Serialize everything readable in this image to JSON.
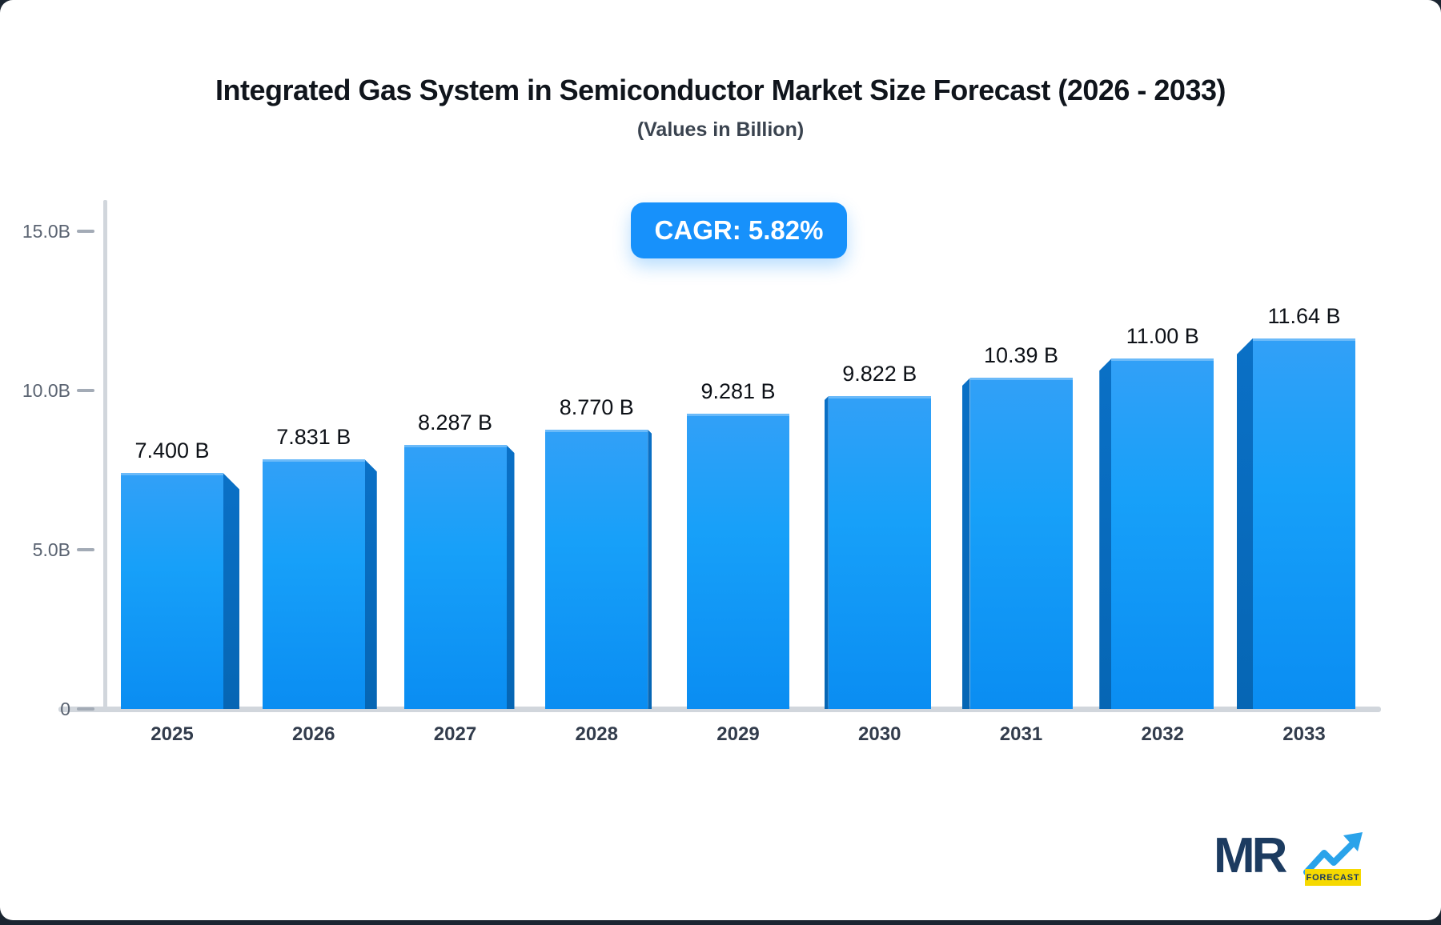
{
  "header": {
    "title": "Integrated Gas System in Semiconductor Market Size Forecast (2026 - 2033)",
    "subtitle": "(Values in Billion)",
    "cagr_label": "CAGR: 5.82%"
  },
  "chart_data": {
    "type": "bar",
    "title": "Integrated Gas System in Semiconductor Market Size Forecast (2026 - 2033)",
    "subtitle": "(Values in Billion)",
    "categories": [
      "2025",
      "2026",
      "2027",
      "2028",
      "2029",
      "2030",
      "2031",
      "2032",
      "2033"
    ],
    "values": [
      7.4,
      7.831,
      8.287,
      8.77,
      9.281,
      9.822,
      10.39,
      11.0,
      11.64
    ],
    "value_labels": [
      "7.400 B",
      "7.831 B",
      "8.287 B",
      "8.770 B",
      "9.281 B",
      "9.822 B",
      "10.39 B",
      "11.00 B",
      "11.64 B"
    ],
    "xlabel": "",
    "ylabel": "",
    "ylim": [
      0,
      15
    ],
    "yticks": [
      {
        "label": "15.0B",
        "value": 15
      },
      {
        "label": "10.0B",
        "value": 10
      },
      {
        "label": "5.0B",
        "value": 5
      },
      {
        "label": "0",
        "value": 0
      }
    ],
    "grid": false,
    "legend": false,
    "bar_style": "3d-perspective",
    "annotation": "CAGR: 5.82%"
  },
  "colors": {
    "accent_blue": "#1791fb",
    "bar_face": "#1796f5",
    "bar_side": "#0769bf",
    "axis_gray": "#d1d6dc",
    "tick_text": "#5a6371",
    "year_text": "#323c4c",
    "value_text": "#0d1117",
    "logo_navy": "#1c3b60",
    "logo_yellow": "#f6d900"
  },
  "branding": {
    "logo_text": "MR",
    "logo_sub": "FORECAST"
  },
  "icons": {
    "logo_trend_arrow": "zigzag-up-arrow"
  }
}
